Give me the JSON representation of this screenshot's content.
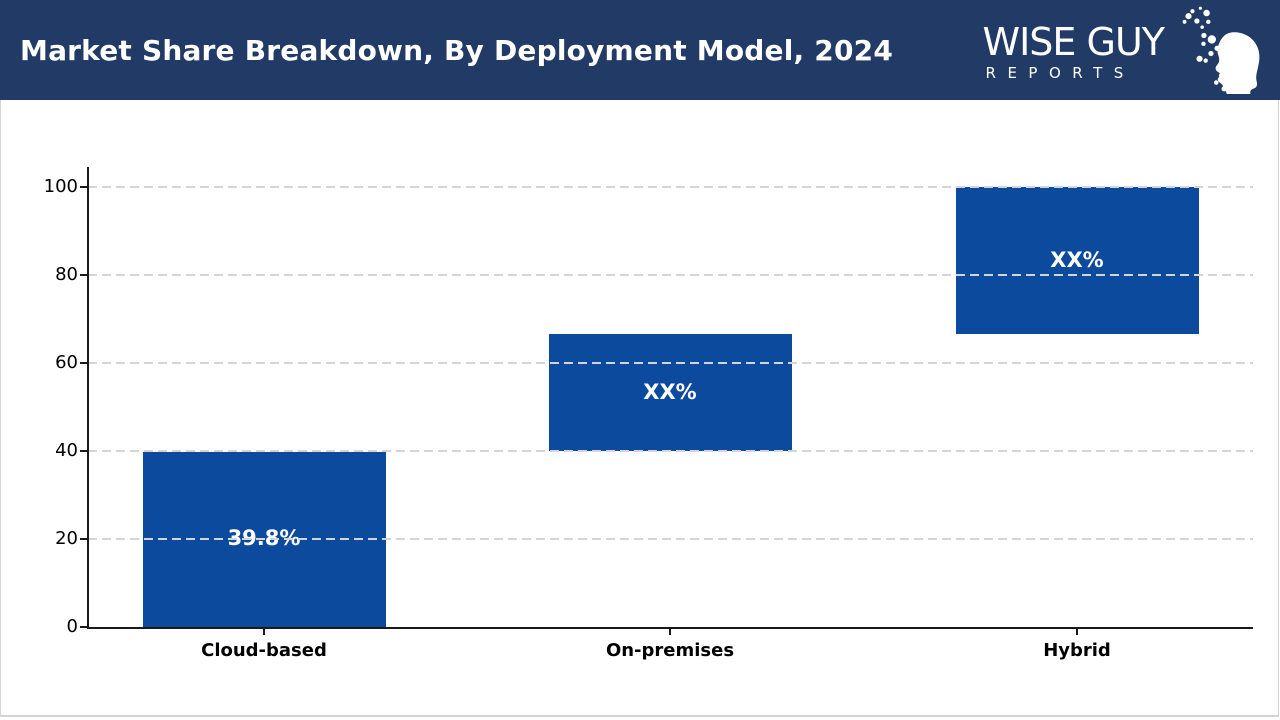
{
  "header": {
    "title": "Market Share Breakdown, By Deployment Model, 2024",
    "bg_color": "#213A66",
    "logo": {
      "line1": "WISE GUY",
      "line2": "REPORTS"
    }
  },
  "watermark": {
    "line1": "WISE GUY",
    "line2": "REPORTS"
  },
  "chart_data": {
    "type": "bar",
    "variant": "floating-segment-waterfall",
    "title": "Market Share Breakdown, By Deployment Model, 2024",
    "categories": [
      "Cloud-based",
      "On-premises",
      "Hybrid"
    ],
    "segments": [
      {
        "category": "Cloud-based",
        "start": 0,
        "end": 39.8,
        "label": "39.8%"
      },
      {
        "category": "On-premises",
        "start": 40,
        "end": 66.5,
        "label": "XX%"
      },
      {
        "category": "Hybrid",
        "start": 66.5,
        "end": 100,
        "label": "XX%"
      }
    ],
    "xlabel": "",
    "ylabel": "",
    "yticks": [
      0,
      20,
      40,
      60,
      80,
      100
    ],
    "ylim": [
      0,
      104.5
    ],
    "grid": "horizontal-dashed",
    "legend": false,
    "bar_color": "#0C4A9E",
    "bar_label_color": "#FFFFFF",
    "grid_color": "#d5d5d9",
    "axis_color": "#1a1a1a"
  }
}
